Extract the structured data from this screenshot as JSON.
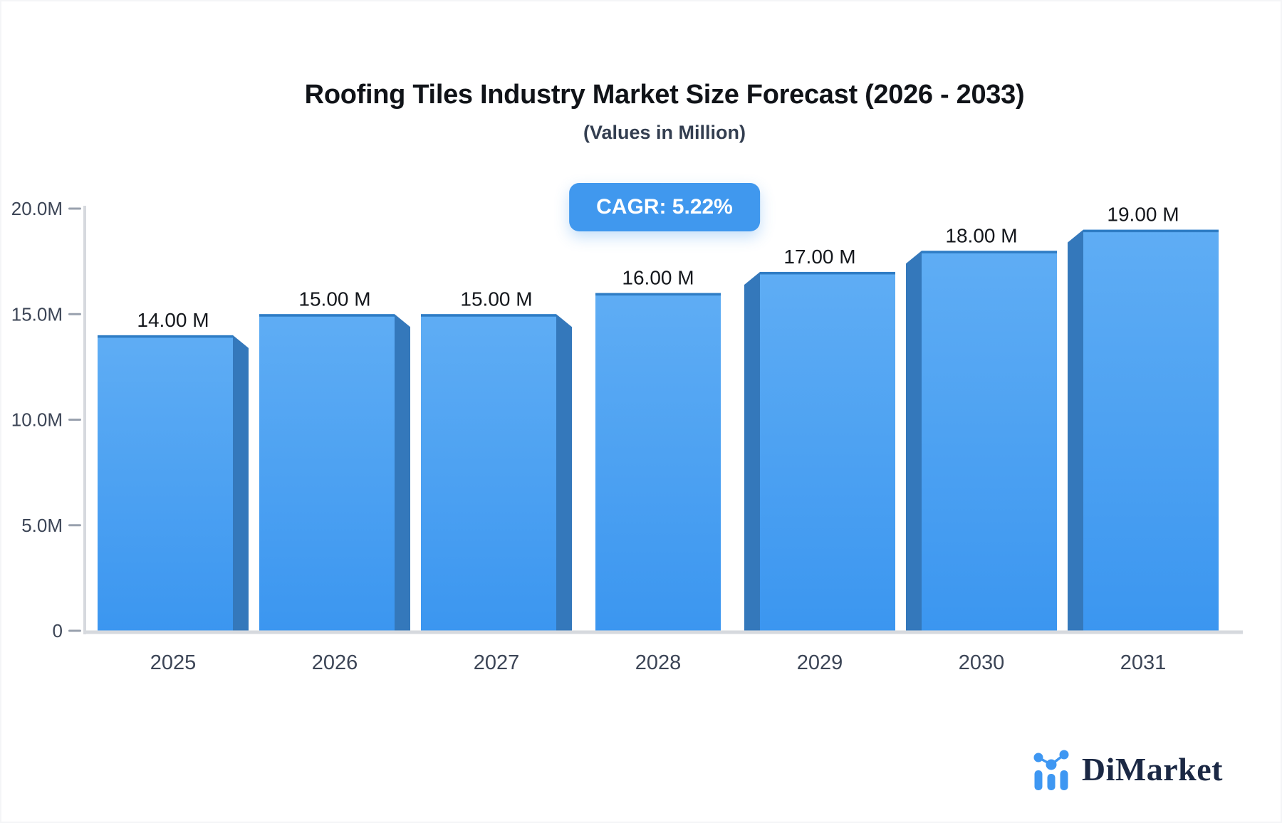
{
  "chart_data": {
    "type": "bar",
    "title": "Roofing Tiles Industry Market Size Forecast (2026 - 2033)",
    "subtitle": "(Values in Million)",
    "badge": "CAGR: 5.22%",
    "categories": [
      "2025",
      "2026",
      "2027",
      "2028",
      "2029",
      "2030",
      "2031"
    ],
    "values": [
      14,
      15,
      15,
      16,
      17,
      18,
      19
    ],
    "value_labels": [
      "14.00 M",
      "15.00 M",
      "15.00 M",
      "16.00 M",
      "17.00 M",
      "18.00 M",
      "19.00 M"
    ],
    "unit": "Million",
    "xlabel": "",
    "ylabel": "",
    "ylim": [
      0,
      20
    ],
    "y_ticks": [
      {
        "value": 0,
        "label": "0"
      },
      {
        "value": 5,
        "label": "5.0M"
      },
      {
        "value": 10,
        "label": "10.0M"
      },
      {
        "value": 15,
        "label": "15.0M"
      },
      {
        "value": 20,
        "label": "20.0M"
      }
    ],
    "grid": false,
    "legend": null,
    "style": "3d-beveled-bars, perspective toward center",
    "colors": {
      "bar_top": "#5fadf4",
      "bar_bottom": "#3b96f0",
      "bar_side": "#3478bb",
      "bar_edge": "#2e7cc4",
      "axis": "#d6d9de",
      "tick": "#99a1ae",
      "label": "#14171c",
      "axis_label": "#3c4556",
      "badge_bg": "#4098ee",
      "badge_text": "#ffffff",
      "title": "#101318",
      "subtitle": "#333e50"
    }
  },
  "branding": {
    "name": "DiMarket",
    "logo_icon": "combo-chart-logo-icon",
    "text_color": "#1b2844",
    "icon_color": "#3e97f2"
  }
}
